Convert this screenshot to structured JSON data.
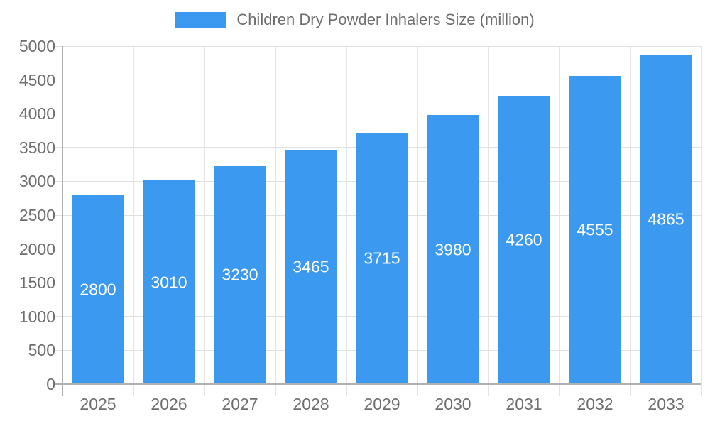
{
  "chart_data": {
    "type": "bar",
    "title": "Children Dry Powder Inhalers Size (million)",
    "legend_position": "top",
    "categories": [
      "2025",
      "2026",
      "2027",
      "2028",
      "2029",
      "2030",
      "2031",
      "2032",
      "2033"
    ],
    "values": [
      2800,
      3010,
      3230,
      3465,
      3715,
      3980,
      4260,
      4555,
      4865
    ],
    "xlabel": "",
    "ylabel": "",
    "ylim": [
      0,
      5000
    ],
    "ytick_step": 500,
    "grid": true,
    "colors": {
      "bar": "#3b99f0",
      "bar_label": "#ffffff",
      "axis_text": "#6e6e6e",
      "grid": "#e0e0e0",
      "vgrid": "#e4e4e4",
      "axis_line": "#b0b0b0"
    }
  }
}
